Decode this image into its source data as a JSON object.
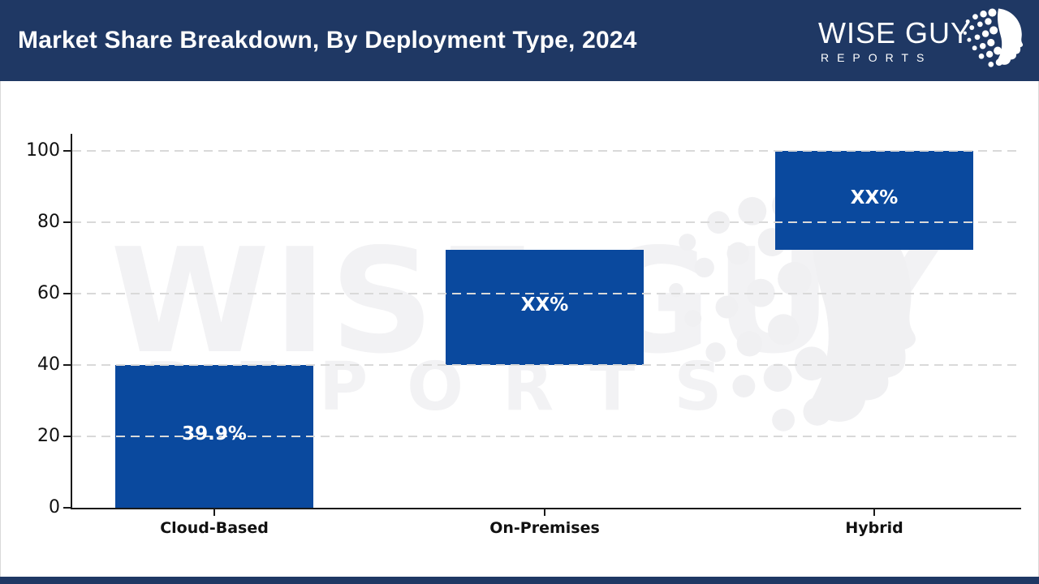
{
  "header": {
    "title": "Market Share Breakdown, By Deployment Type, 2024",
    "logo": {
      "line1": "WISE GUY",
      "line2": "REPORTS"
    }
  },
  "watermark": {
    "line1": "WISE GUY",
    "line2": "REPORTS"
  },
  "chart_data": {
    "type": "bar",
    "subtype": "floating-waterfall",
    "title": "Market Share Breakdown, By Deployment Type, 2024",
    "categories": [
      "Cloud-Based",
      "On-Premises",
      "Hybrid"
    ],
    "segments": [
      {
        "category": "Cloud-Based",
        "start": 0,
        "end": 39.9,
        "label": "39.9%"
      },
      {
        "category": "On-Premises",
        "start": 39.9,
        "end": 72.2,
        "label": "XX%"
      },
      {
        "category": "Hybrid",
        "start": 72.2,
        "end": 100,
        "label": "XX%"
      }
    ],
    "xlabel": "",
    "ylabel": "",
    "ylim": [
      0,
      100
    ],
    "yticks": [
      0,
      20,
      40,
      60,
      80,
      100
    ],
    "grid": "horizontal-dashed",
    "legend": "none",
    "bar_color": "#0a499e",
    "bar_label_color": "#ffffff"
  },
  "colors": {
    "header_bg": "#1f3864",
    "footer_bg": "#1f3864",
    "bar": "#0a499e",
    "gridline": "#d9d9d9",
    "axis": "#1a1a1a",
    "watermark": "#f2f2f4",
    "title_text": "#ffffff",
    "bar_label_text": "#ffffff"
  }
}
